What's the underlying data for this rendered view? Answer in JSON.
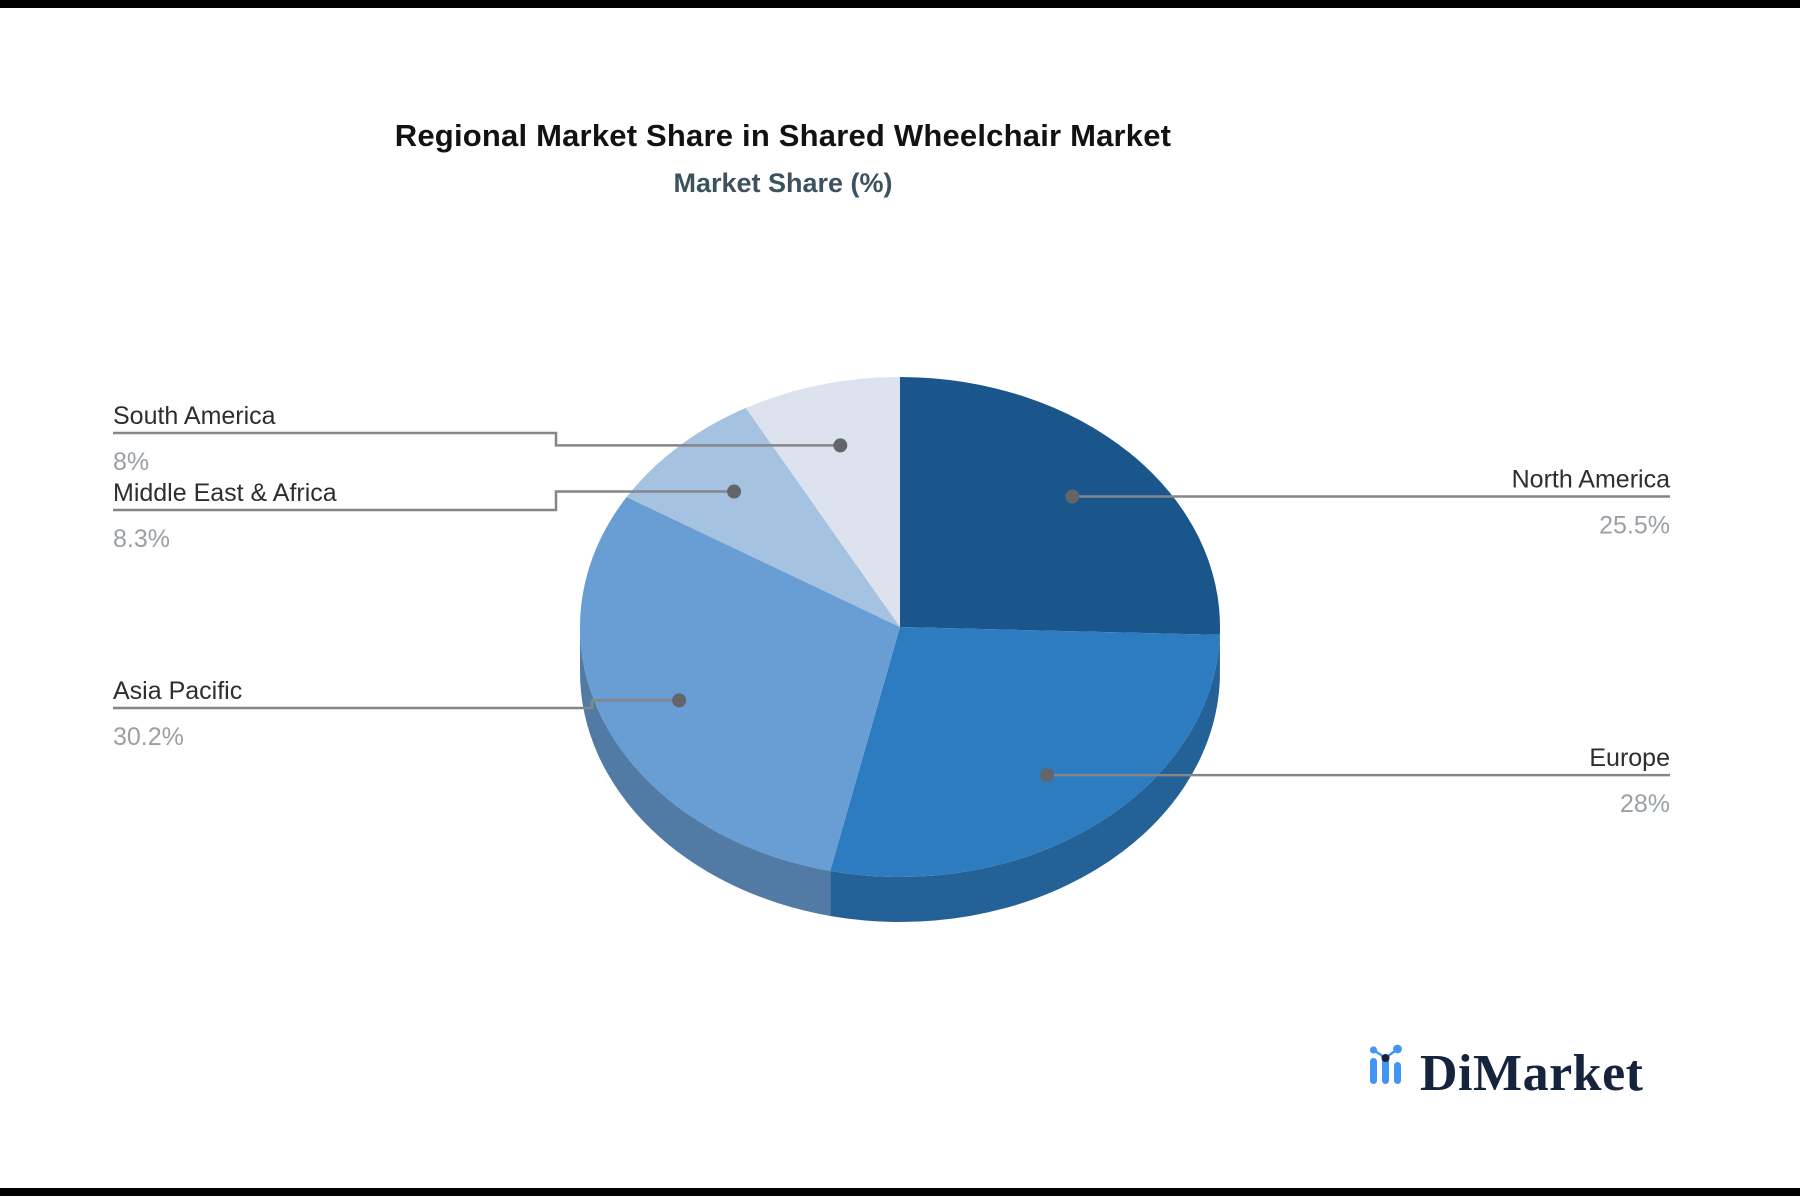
{
  "header": {
    "title": "Regional Market Share in Shared Wheelchair Market",
    "subtitle": "Market Share (%)"
  },
  "brand": {
    "name": "DiMarket"
  },
  "chart_data": {
    "type": "pie",
    "style": "3d",
    "title": "Regional Market Share in Shared Wheelchair Market",
    "subtitle": "Market Share (%)",
    "unit": "%",
    "total": 100,
    "start_angle": "12-oclock",
    "direction": "clockwise",
    "legend": "none",
    "label_style": "leader-lines-with-dots",
    "slices": [
      {
        "label": "North America",
        "value": 25.5,
        "display": "25.5%",
        "color": "#1a568c",
        "label_side": "right"
      },
      {
        "label": "Europe",
        "value": 28,
        "display": "28%",
        "color": "#2e7cc0",
        "label_side": "right"
      },
      {
        "label": "Asia Pacific",
        "value": 30.2,
        "display": "30.2%",
        "color": "#689ed3",
        "label_side": "left"
      },
      {
        "label": "Middle East & Africa",
        "value": 8.3,
        "display": "8.3%",
        "color": "#a5c3e0",
        "label_side": "left"
      },
      {
        "label": "South America",
        "value": 8,
        "display": "8%",
        "color": "#dde3ee",
        "label_side": "left"
      }
    ],
    "leader_line_color": "#85868a",
    "leader_dot_color": "#636569",
    "name_text_color": "#2e2e2e",
    "value_text_color": "#9aa0a6"
  }
}
